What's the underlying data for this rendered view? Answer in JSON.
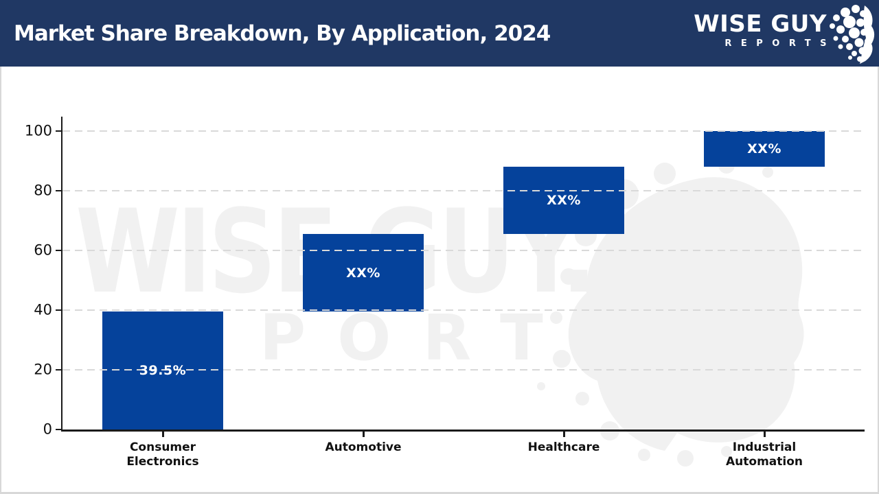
{
  "header": {
    "title": "Market Share Breakdown, By Application, 2024",
    "logo": {
      "line1": "WISE GUY",
      "line2": "REPORTS"
    }
  },
  "watermark": {
    "line1": "WISE GUY.",
    "line2": "REPORTS"
  },
  "chart_data": {
    "type": "bar",
    "subtype": "waterfall",
    "title": "Market Share Breakdown, By Application, 2024",
    "categories": [
      "Consumer\nElectronics",
      "Automotive",
      "Healthcare",
      "Industrial\nAutomation"
    ],
    "segments": [
      {
        "category": "Consumer Electronics",
        "start": 0,
        "end": 39.5,
        "value": 39.5,
        "label": "39.5%"
      },
      {
        "category": "Automotive",
        "start": 39.5,
        "end": 65.5,
        "value": 26.0,
        "label": "XX%"
      },
      {
        "category": "Healthcare",
        "start": 65.5,
        "end": 88.0,
        "value": 22.5,
        "label": "XX%"
      },
      {
        "category": "Industrial Automation",
        "start": 88.0,
        "end": 100.0,
        "value": 12.0,
        "label": "XX%"
      }
    ],
    "ylim": [
      0,
      100
    ],
    "yticks": [
      0,
      20,
      40,
      60,
      80,
      100
    ],
    "xlabel": "",
    "ylabel": "",
    "grid": {
      "horizontal": true,
      "style": "dashed",
      "drawn_over_bars": true
    },
    "legend": "none",
    "bar_color": "#05429b",
    "bar_label_color": "#ffffff"
  },
  "colors": {
    "header_bg": "#203864",
    "bar_fill": "#05429b",
    "axis": "#1a1a1a",
    "grid": "#d9d9d9",
    "watermark": "#f1f1f1",
    "frame_border": "#d8d8d8"
  }
}
